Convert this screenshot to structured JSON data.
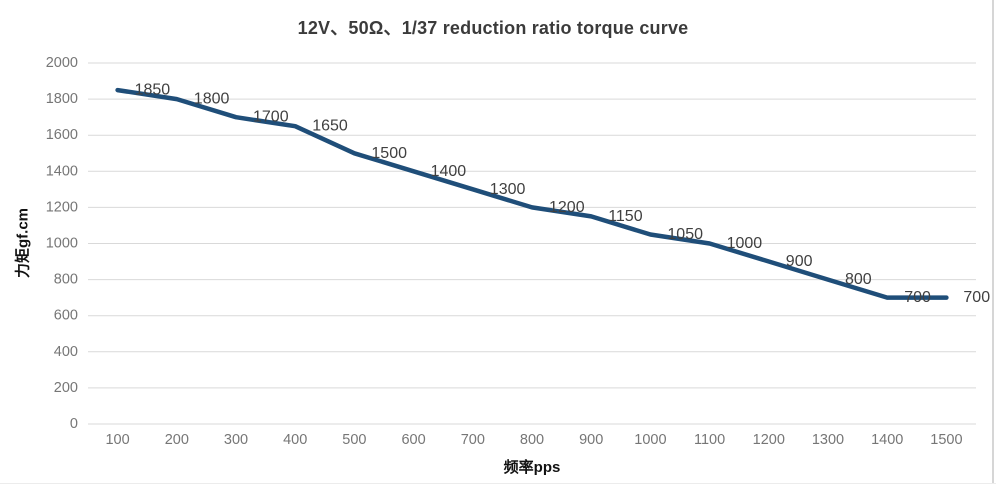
{
  "chart": {
    "title": "12V、50Ω、1/37 reduction ratio torque curve",
    "y_axis_title": "力矩gf.cm",
    "x_axis_title": "频率pps"
  },
  "chart_data": {
    "type": "line",
    "title": "12V、50Ω、1/37 reduction ratio torque curve",
    "xlabel": "频率pps",
    "ylabel": "力矩gf.cm",
    "x": [
      100,
      200,
      300,
      400,
      500,
      600,
      700,
      800,
      900,
      1000,
      1100,
      1200,
      1300,
      1400,
      1500
    ],
    "series": [
      {
        "name": "torque",
        "values": [
          1850,
          1800,
          1700,
          1650,
          1500,
          1400,
          1300,
          1200,
          1150,
          1050,
          1000,
          900,
          800,
          700,
          700
        ]
      }
    ],
    "ylim": [
      0,
      2000
    ],
    "ytick_step": 200,
    "grid": "horizontal",
    "legend": "none",
    "data_labels": true,
    "colors": {
      "line": "#1f4e79",
      "gridline": "#d9d9d9",
      "tick_text": "#767676",
      "data_label_text": "#404040",
      "title_text": "#3b3b3b"
    }
  }
}
